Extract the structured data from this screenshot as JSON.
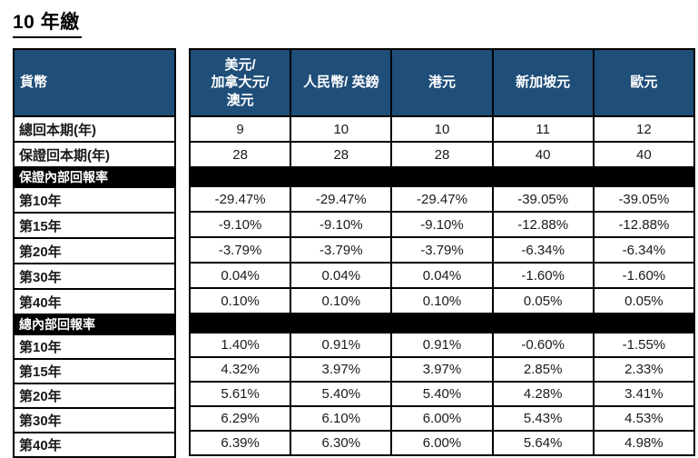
{
  "page_title": "10 年繳",
  "colors": {
    "header_bg": "#1F4E79",
    "header_text": "#FFFFFF",
    "section_bar_bg": "#000000",
    "section_bar_text": "#FFFFFF",
    "border": "#000000",
    "body_text": "#1A1A1A"
  },
  "table": {
    "header": {
      "label": "貨幣",
      "columns": [
        "美元/\n加拿大元/\n澳元",
        "人民幣/ 英鎊",
        "港元",
        "新加坡元",
        "歐元"
      ]
    },
    "rows": [
      {
        "type": "data",
        "label": "總回本期(年)",
        "values": [
          "9",
          "10",
          "10",
          "11",
          "12"
        ]
      },
      {
        "type": "data",
        "label": "保證回本期(年)",
        "values": [
          "28",
          "28",
          "28",
          "40",
          "40"
        ]
      },
      {
        "type": "section",
        "label": "保證內部回報率"
      },
      {
        "type": "data",
        "label": "第10年",
        "values": [
          "-29.47%",
          "-29.47%",
          "-29.47%",
          "-39.05%",
          "-39.05%"
        ]
      },
      {
        "type": "data",
        "label": "第15年",
        "values": [
          "-9.10%",
          "-9.10%",
          "-9.10%",
          "-12.88%",
          "-12.88%"
        ]
      },
      {
        "type": "data",
        "label": "第20年",
        "values": [
          "-3.79%",
          "-3.79%",
          "-3.79%",
          "-6.34%",
          "-6.34%"
        ]
      },
      {
        "type": "data",
        "label": "第30年",
        "values": [
          "0.04%",
          "0.04%",
          "0.04%",
          "-1.60%",
          "-1.60%"
        ]
      },
      {
        "type": "data",
        "label": "第40年",
        "values": [
          "0.10%",
          "0.10%",
          "0.10%",
          "0.05%",
          "0.05%"
        ]
      },
      {
        "type": "section",
        "label": "總內部回報率"
      },
      {
        "type": "data",
        "label": "第10年",
        "values": [
          "1.40%",
          "0.91%",
          "0.91%",
          "-0.60%",
          "-1.55%"
        ]
      },
      {
        "type": "data",
        "label": "第15年",
        "values": [
          "4.32%",
          "3.97%",
          "3.97%",
          "2.85%",
          "2.33%"
        ]
      },
      {
        "type": "data",
        "label": "第20年",
        "values": [
          "5.61%",
          "5.40%",
          "5.40%",
          "4.28%",
          "3.41%"
        ]
      },
      {
        "type": "data",
        "label": "第30年",
        "values": [
          "6.29%",
          "6.10%",
          "6.00%",
          "5.43%",
          "4.53%"
        ]
      },
      {
        "type": "data",
        "label": "第40年",
        "values": [
          "6.39%",
          "6.30%",
          "6.00%",
          "5.64%",
          "4.98%"
        ]
      }
    ]
  }
}
